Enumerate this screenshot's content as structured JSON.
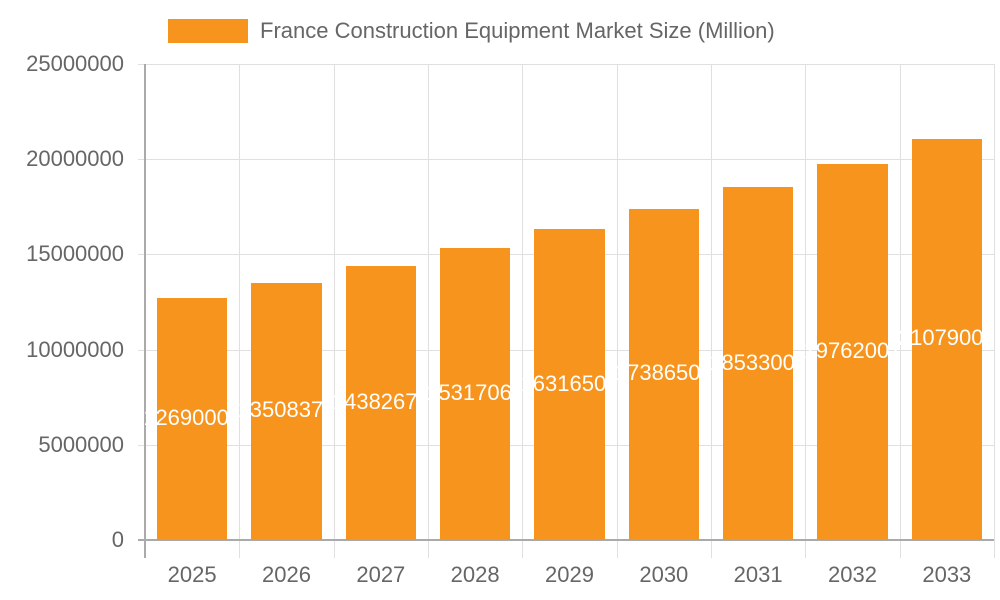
{
  "chart_data": {
    "type": "bar",
    "title": "",
    "legend": [
      "France Construction Equipment Market Size (Million)"
    ],
    "legend_position": "top",
    "categories": [
      "2025",
      "2026",
      "2027",
      "2028",
      "2029",
      "2030",
      "2031",
      "2032",
      "2033"
    ],
    "series": [
      {
        "name": "France Construction Equipment Market Size (Million)",
        "color": "#f7941d",
        "values": [
          12690000,
          13508370,
          14382675,
          15317060,
          16316505,
          17386505,
          18533001,
          19762001,
          21079001
        ]
      }
    ],
    "xlabel": "",
    "ylabel": "",
    "ylim": [
      0,
      25000000
    ],
    "yticks": [
      "0",
      "5000000",
      "10000000",
      "15000000",
      "20000000",
      "25000000"
    ],
    "grid": true
  },
  "legend": {
    "label": "France Construction Equipment Market Size (Million)"
  }
}
